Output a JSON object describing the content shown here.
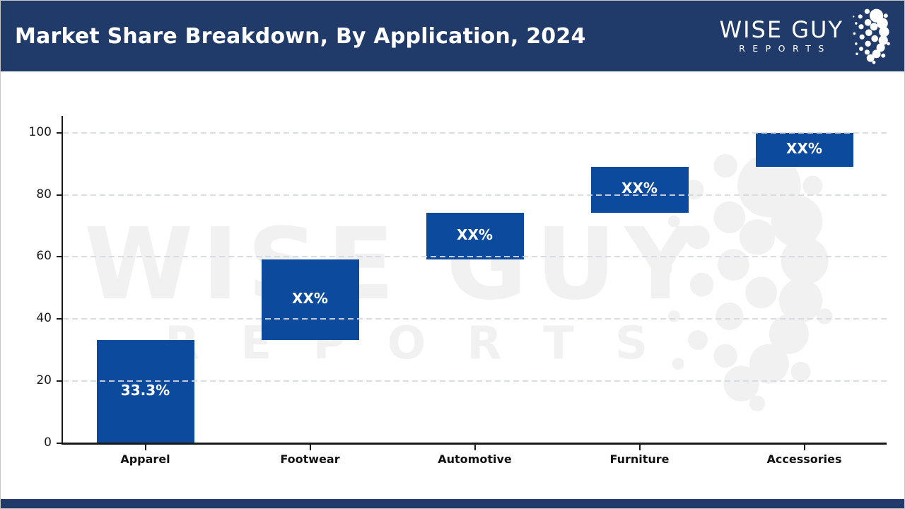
{
  "header": {
    "title": "Market Share Breakdown, By Application, 2024",
    "logo": {
      "line1": "WISE GUY",
      "line2": "REPORTS"
    }
  },
  "watermark": {
    "line1": "WISE GUY",
    "line2": "R E P O R T S"
  },
  "colors": {
    "navy": "#203a69",
    "bar_blue": "#0c4a9e",
    "gridline": "rgba(214,217,223,0.9)",
    "watermark_gray": "#f1f1f1",
    "axis_black": "#1a1a1a",
    "bar_label_white": "#ffffff"
  },
  "chart_data": {
    "type": "bar",
    "subtype": "waterfall",
    "title": "Market Share Breakdown, By Application, 2024",
    "categories": [
      "Apparel",
      "Footwear",
      "Automotive",
      "Furniture",
      "Accessories"
    ],
    "segments": [
      {
        "category": "Apparel",
        "start": 0,
        "end": 33.3,
        "label": "33.3%"
      },
      {
        "category": "Footwear",
        "start": 33.3,
        "end": 59.3,
        "label": "XX%"
      },
      {
        "category": "Automotive",
        "start": 59.3,
        "end": 74.3,
        "label": "XX%"
      },
      {
        "category": "Furniture",
        "start": 74.3,
        "end": 89.1,
        "label": "XX%"
      },
      {
        "category": "Accessories",
        "start": 89.1,
        "end": 100,
        "label": "XX%"
      }
    ],
    "yticks": [
      0,
      20,
      40,
      60,
      80,
      100
    ],
    "ylim": [
      0,
      105.4
    ],
    "xlabel": "",
    "ylabel": "",
    "grid": "horizontal-dashed-drawn-over-bars",
    "legend": "none"
  }
}
